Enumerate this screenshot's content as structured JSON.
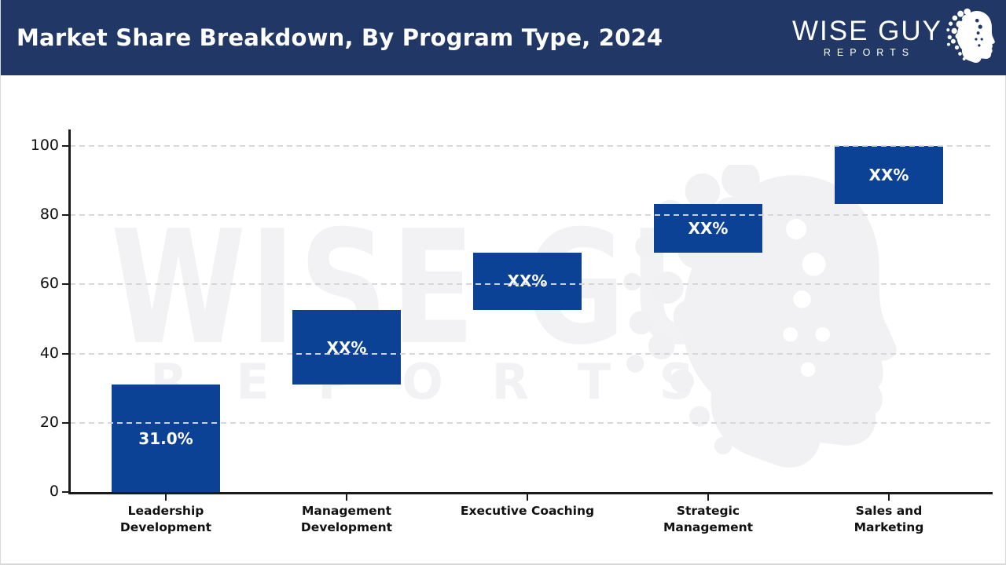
{
  "header": {
    "title": "Market Share Breakdown, By Program Type, 2024",
    "logo": {
      "line1": "WISE GUY",
      "line2": "REPORTS"
    }
  },
  "watermark": {
    "line1": "WISE GUY",
    "line2": "R E P O R T S"
  },
  "chart_data": {
    "type": "bar",
    "subtype": "waterfall-floating-bars",
    "title": "Market Share Breakdown, By Program Type, 2024",
    "xlabel": "",
    "ylabel": "",
    "ylim": [
      0,
      105
    ],
    "yticks": [
      0,
      20,
      40,
      60,
      80,
      100
    ],
    "grid": "horizontal-dashed",
    "legend": "none",
    "bar_color": "#0b4295",
    "bar_label_color": "#ffffff",
    "categories": [
      "Leadership\nDevelopment",
      "Management\nDevelopment",
      "Executive Coaching",
      "Strategic\nManagement",
      "Sales and\nMarketing"
    ],
    "segments": [
      {
        "category": "Leadership Development",
        "start": 0,
        "end": 31.0,
        "value_label": "31.0%"
      },
      {
        "category": "Management Development",
        "start": 31.0,
        "end": 52.6,
        "value_label": "XX%"
      },
      {
        "category": "Executive Coaching",
        "start": 52.6,
        "end": 69.2,
        "value_label": "XX%"
      },
      {
        "category": "Strategic Management",
        "start": 69.2,
        "end": 83.3,
        "value_label": "XX%"
      },
      {
        "category": "Sales and Marketing",
        "start": 83.3,
        "end": 100.0,
        "value_label": "XX%"
      }
    ]
  },
  "colors": {
    "header_bg": "#213866",
    "bar": "#0b4295",
    "grid": "#d9d9d9",
    "axis": "#1a1a1a",
    "watermark": "#f2f2f5",
    "title_text": "#ffffff",
    "category_text": "#111111"
  }
}
